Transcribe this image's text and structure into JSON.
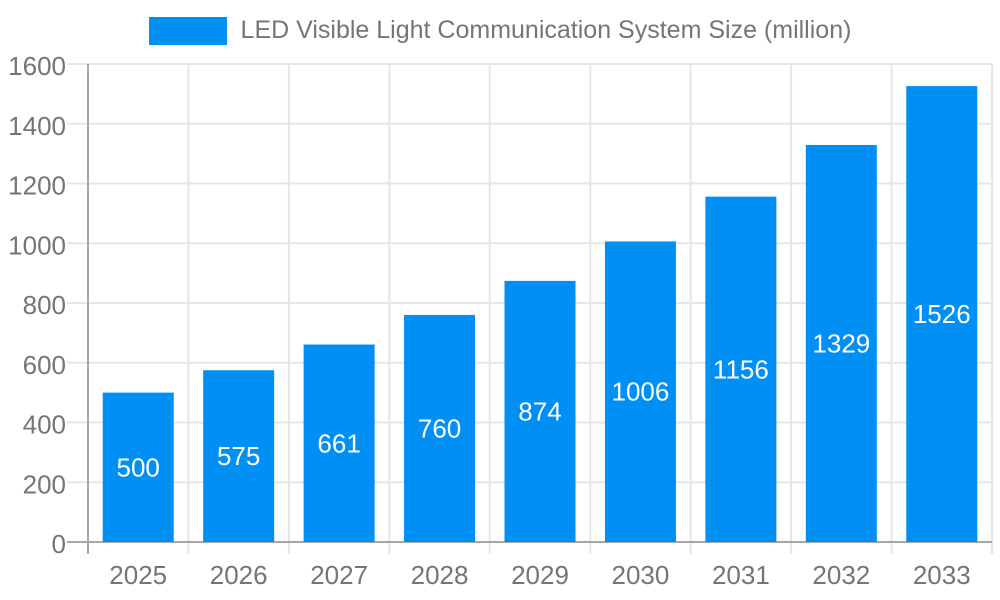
{
  "chart_data": {
    "type": "bar",
    "title": "LED Visible Light Communication System Size (million)",
    "categories": [
      "2025",
      "2026",
      "2027",
      "2028",
      "2029",
      "2030",
      "2031",
      "2032",
      "2033"
    ],
    "values": [
      500,
      575,
      661,
      760,
      874,
      1006,
      1156,
      1329,
      1526
    ],
    "xlabel": "",
    "ylabel": "",
    "ylim": [
      0,
      1600
    ],
    "ytick_step": 200,
    "ytick_labels": [
      "0",
      "200",
      "400",
      "600",
      "800",
      "1000",
      "1200",
      "1400",
      "1600"
    ],
    "grid": true,
    "legend_position": "top",
    "value_labels_position": "inside-center",
    "colors": {
      "bar": "#008FF5",
      "grid": "#E6E6E6",
      "axis": "#A6A6A6",
      "tick_text": "#757575",
      "value_label_text": "#FFFFFF",
      "background": "#FFFFFF"
    }
  }
}
